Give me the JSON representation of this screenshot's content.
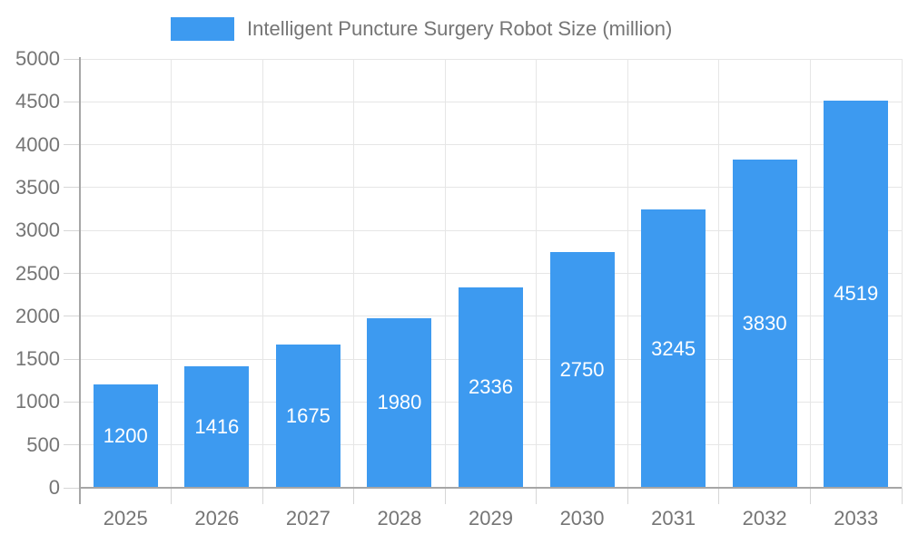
{
  "legend": {
    "label": "Intelligent Puncture Surgery Robot Size (million)"
  },
  "chart_data": {
    "type": "bar",
    "title": "Intelligent Puncture Surgery Robot Size (million)",
    "categories": [
      "2025",
      "2026",
      "2027",
      "2028",
      "2029",
      "2030",
      "2031",
      "2032",
      "2033"
    ],
    "values": [
      1200,
      1416,
      1675,
      1980,
      2336,
      2750,
      3245,
      3830,
      4519
    ],
    "series": [
      {
        "name": "Intelligent Puncture Surgery Robot Size (million)",
        "values": [
          1200,
          1416,
          1675,
          1980,
          2336,
          2750,
          3245,
          3830,
          4519
        ]
      }
    ],
    "xlabel": "",
    "ylabel": "",
    "ylim": [
      0,
      5000
    ],
    "ytick_step": 500,
    "ytick_labels": [
      "0",
      "500",
      "1000",
      "1500",
      "2000",
      "2500",
      "3000",
      "3500",
      "4000",
      "4500",
      "5000"
    ],
    "grid": "on",
    "legend_position": "top",
    "bar_labels_shown": true
  },
  "colors": {
    "bar": "#3D9AF0",
    "bar_label": "#ffffff",
    "text": "#757575",
    "axis": "#a6a6a6",
    "grid": "#e6e6e6",
    "tick": "#d6d6d6",
    "background": "#ffffff"
  }
}
